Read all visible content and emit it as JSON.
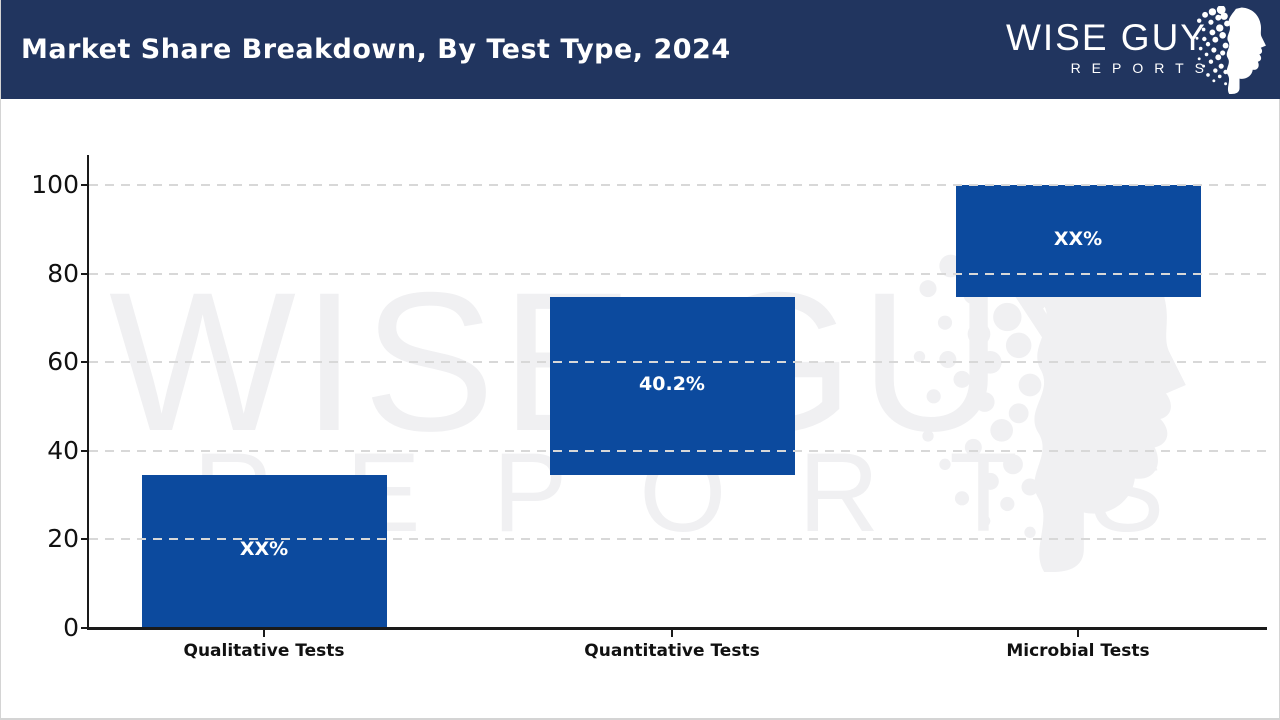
{
  "header": {
    "title": "Market Share Breakdown, By Test Type, 2024",
    "logo": {
      "line1": "WISE GUY",
      "line2": "REPORTS"
    }
  },
  "watermark": {
    "line1": "WISE GUY",
    "line2": "REPORTS"
  },
  "colors": {
    "header_bg": "#21355F",
    "bar": "#0C4A9E",
    "bar_label": "#FFFFFF",
    "gridline": "#D8D8D8",
    "axis": "#1A1A1A",
    "watermark": "#F0F0F2",
    "page_border": "#D4D4D4"
  },
  "chart_data": {
    "type": "bar",
    "subtype": "stepped-waterfall",
    "title": "Market Share Breakdown, By Test Type, 2024",
    "categories": [
      "Qualitative Tests",
      "Quantitative Tests",
      "Microbial Tests"
    ],
    "series": [
      {
        "name": "Market Share (%)",
        "segments": [
          {
            "category": "Qualitative Tests",
            "start": 0,
            "end": 34.4,
            "value_label": "XX%"
          },
          {
            "category": "Quantitative Tests",
            "start": 34.4,
            "end": 74.6,
            "value_label": "40.2%"
          },
          {
            "category": "Microbial Tests",
            "start": 74.6,
            "end": 100,
            "value_label": "XX%"
          }
        ]
      }
    ],
    "xlabel": "",
    "ylabel": "",
    "yticks": [
      0,
      20,
      40,
      60,
      80,
      100
    ],
    "ylim": [
      0,
      107
    ],
    "grid": "dashed-horizontal",
    "legend": "none"
  }
}
